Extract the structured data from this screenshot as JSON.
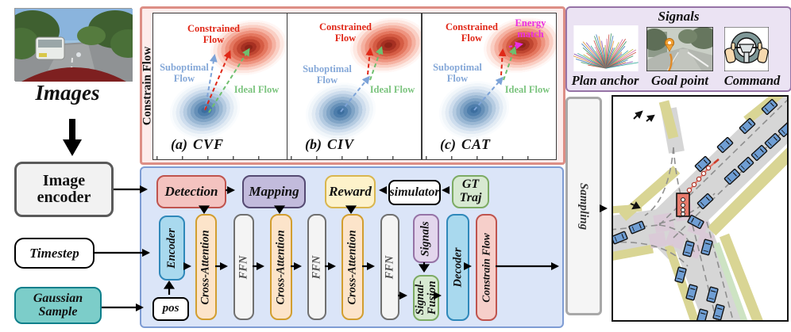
{
  "left_column": {
    "images_label": "Images",
    "image_encoder_label": "Image encoder",
    "timestep_label": "Timestep",
    "gaussian_sample_label": "Gaussian Sample"
  },
  "flow_group": {
    "side_label": "Constrain Flow",
    "panels": [
      {
        "caption_prefix": "(a)",
        "caption_name": "CVF",
        "constrained_label": "Constrained Flow",
        "suboptimal_label": "Suboptimal Flow",
        "ideal_label": "Ideal Flow"
      },
      {
        "caption_prefix": "(b)",
        "caption_name": "CIV",
        "constrained_label": "Constrained Flow",
        "suboptimal_label": "Suboptimal Flow",
        "ideal_label": "Ideal Flow"
      },
      {
        "caption_prefix": "(c)",
        "caption_name": "CAT",
        "constrained_label": "Constrained Flow",
        "suboptimal_label": "Suboptimal Flow",
        "ideal_label": "Ideal Flow",
        "energy_label": "Energy match"
      }
    ]
  },
  "signals_panel": {
    "title": "Signals",
    "items": [
      {
        "label": "Plan anchor"
      },
      {
        "label": "Goal point"
      },
      {
        "label": "Command"
      }
    ]
  },
  "pipeline": {
    "detection": "Detection",
    "mapping": "Mapping",
    "reward": "Reward",
    "simulator": "simulator",
    "gt_traj": "GT Traj",
    "encoder": "Encoder",
    "pos": "pos",
    "columns": [
      "Cross-Attention",
      "FFN",
      "Cross-Attention",
      "FFN",
      "Cross-Attention",
      "FFN"
    ],
    "signals": "Signals",
    "signal_fusion": "Signal-Fusion",
    "decoder": "Decoder",
    "constrain_flow": "Constrain Flow"
  },
  "sampling_label": "Sampling",
  "colors": {
    "group_bg": "#fdeceb",
    "group_border": "#dd8e85",
    "signals_bg": "#ebe3f3",
    "signals_border": "#9673a6",
    "pipeline_bg": "#dbe5f8",
    "pipeline_border": "#7e9cd4",
    "detection_fill": "#f4c3c0",
    "detection_border": "#bf544e",
    "mapping_fill": "#c2bbdc",
    "mapping_border": "#554a72",
    "reward_fill": "#fdf2ca",
    "reward_border": "#d9b64f",
    "green_fill": "#d7e9d1",
    "green_border": "#7dab64",
    "blue_fill": "#a9d9ee",
    "blue_border": "#2f88ba",
    "orange_fill": "#fce4ca",
    "orange_border": "#d29e2f",
    "gray_fill": "#f4f4f4",
    "gray_border": "#707070",
    "purple_fill": "#e3d6ed",
    "purple_border": "#9673a6",
    "pink_fill": "#f6cfca",
    "teal_fill": "#7ccdc9",
    "teal_border": "#0e7f8b",
    "imgenc_fill": "#f2f2f2",
    "imgenc_border": "#5a5a5a",
    "sampling_fill": "#f5f5f5",
    "sampling_border": "#a8a8a8"
  }
}
